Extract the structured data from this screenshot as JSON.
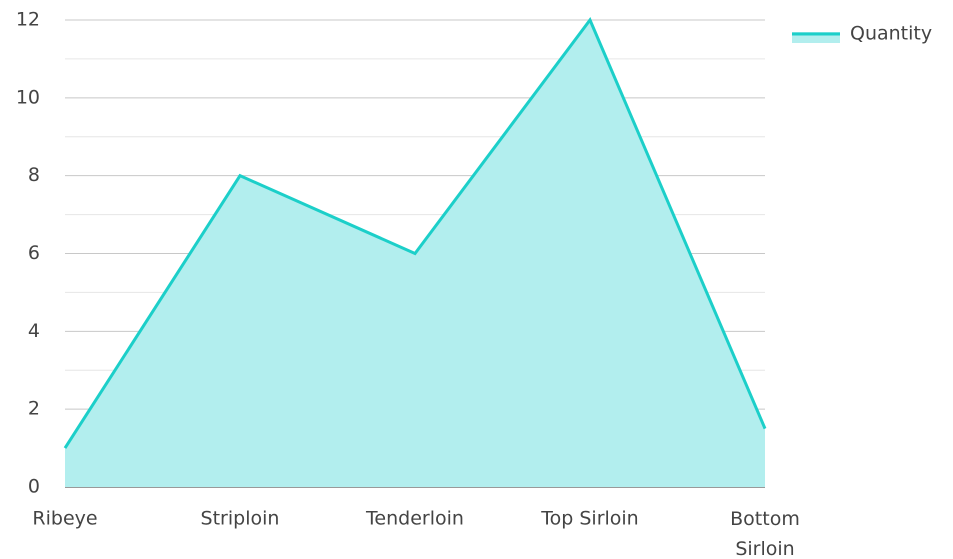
{
  "chart_data": {
    "type": "area",
    "categories": [
      "Ribeye",
      "Striploin",
      "Tenderloin",
      "Top Sirloin",
      "Bottom Sirloin"
    ],
    "series": [
      {
        "name": "Quantity",
        "color": "#1ccfc9",
        "fill": "#b2eeee",
        "values": [
          1,
          8,
          6,
          12,
          1.5
        ]
      }
    ],
    "ylim": [
      0,
      12
    ],
    "yticks": [
      0,
      2,
      4,
      6,
      8,
      10,
      12
    ],
    "grid": true,
    "legend": "top-right"
  }
}
